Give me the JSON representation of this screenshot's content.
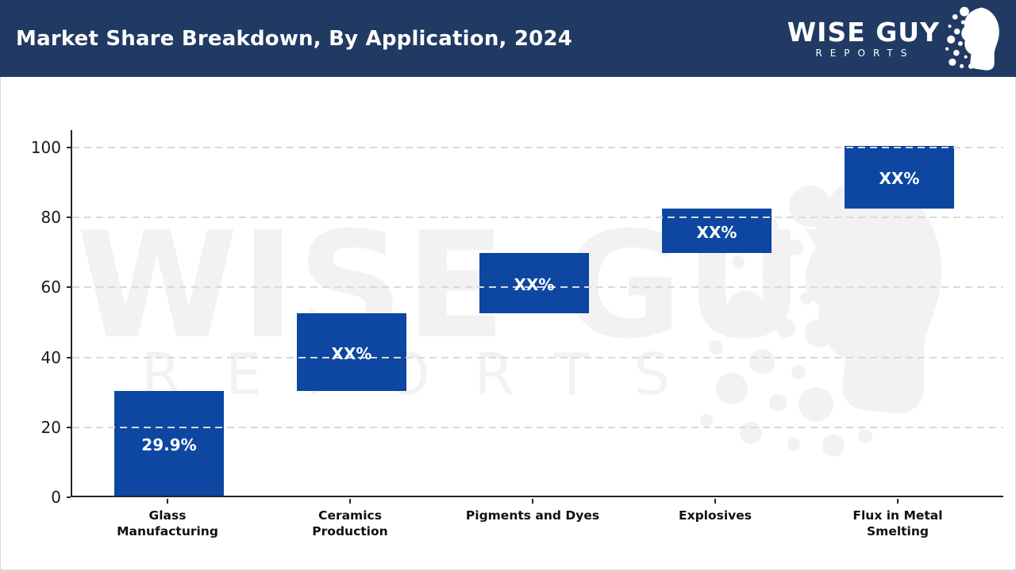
{
  "header": {
    "title": "Market Share Breakdown, By Application, 2024",
    "logo": {
      "line1": "WISE GUY",
      "line2": "REPORTS"
    }
  },
  "watermark": {
    "line1": "WISE GUY",
    "line2": "REPORTS"
  },
  "colors": {
    "header_bg": "#213a63",
    "bar": "#0d47a1",
    "bar_label": "#ffffff",
    "gridline": "#d9d9d9",
    "axis": "#262626",
    "watermark": "#f2f2f2"
  },
  "chart_data": {
    "type": "bar",
    "subtype": "waterfall",
    "title": "Market Share Breakdown, By Application, 2024",
    "xlabel": "",
    "ylabel": "",
    "ylim": [
      0,
      105
    ],
    "yticks": [
      0,
      20,
      40,
      60,
      80,
      100
    ],
    "grid": "horizontal dashed, drawn over bars",
    "legend": "none",
    "categories": [
      "Glass Manufacturing",
      "Ceramics Production",
      "Pigments and Dyes",
      "Explosives",
      "Flux in Metal Smelting"
    ],
    "category_label_lines": [
      [
        "Glass",
        "Manufacturing"
      ],
      [
        "Ceramics",
        "Production"
      ],
      [
        "Pigments and Dyes"
      ],
      [
        "Explosives"
      ],
      [
        "Flux in Metal",
        "Smelting"
      ]
    ],
    "segments": [
      {
        "category": "Glass Manufacturing",
        "start": 0,
        "end": 29.9,
        "value": 29.9,
        "label": "29.9%"
      },
      {
        "category": "Ceramics Production",
        "start": 29.9,
        "end": 52.2,
        "value": 22.3,
        "label": "XX%"
      },
      {
        "category": "Pigments and Dyes",
        "start": 52.2,
        "end": 69.5,
        "value": 17.3,
        "label": "XX%"
      },
      {
        "category": "Explosives",
        "start": 69.5,
        "end": 82.2,
        "value": 12.7,
        "label": "XX%"
      },
      {
        "category": "Flux in Metal Smelting",
        "start": 82.2,
        "end": 100,
        "value": 17.8,
        "label": "XX%"
      }
    ]
  }
}
